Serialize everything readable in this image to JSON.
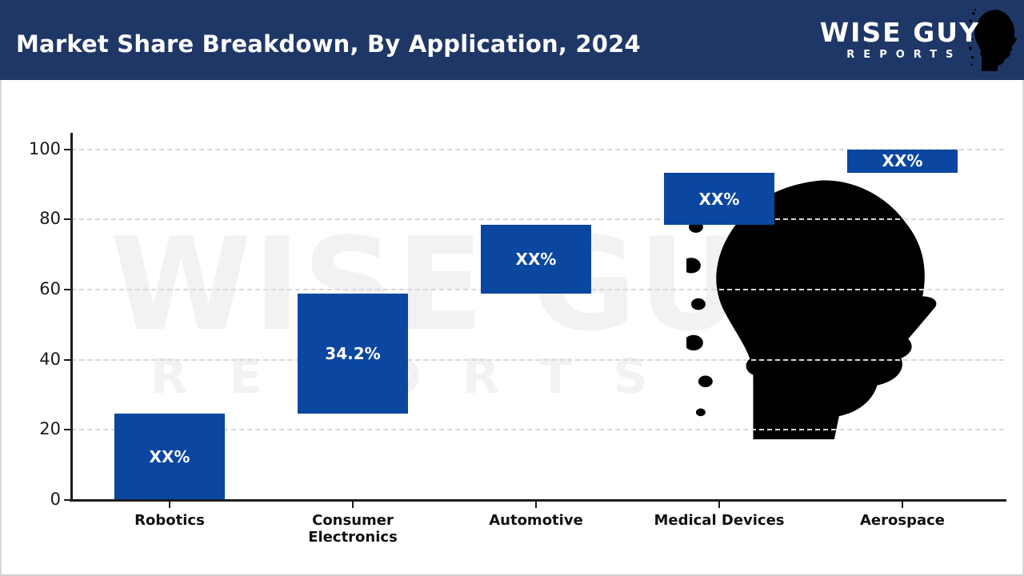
{
  "header": {
    "title": "Market Share Breakdown, By Application, 2024",
    "logo": {
      "line1": "WISE GUY",
      "line2": "REPORTS"
    }
  },
  "watermark": {
    "line1": "WISE GUY",
    "line2": "REPORTS"
  },
  "colors": {
    "header_bg": "#1f3766",
    "bar": "#0b46a0",
    "bar_label": "#ffffff",
    "grid": "#d9d9d9",
    "axis": "#1c1c1c",
    "watermark": "#f2f2f4"
  },
  "chart_data": {
    "type": "bar",
    "subtype": "waterfall",
    "title": "Market Share Breakdown, By Application, 2024",
    "xlabel": "",
    "ylabel": "",
    "ylim": [
      0,
      100
    ],
    "yticks": [
      0,
      20,
      40,
      60,
      80,
      100
    ],
    "grid": "horizontal-dashed",
    "legend": "none",
    "categories": [
      "Robotics",
      "Consumer Electronics",
      "Automotive",
      "Medical Devices",
      "Aerospace"
    ],
    "segments": [
      {
        "category": "Robotics",
        "start": 0,
        "end": 24.6,
        "value": 24.6,
        "label": "XX%"
      },
      {
        "category": "Consumer Electronics",
        "start": 24.6,
        "end": 58.8,
        "value": 34.2,
        "label": "34.2%"
      },
      {
        "category": "Automotive",
        "start": 58.8,
        "end": 78.4,
        "value": 19.6,
        "label": "XX%"
      },
      {
        "category": "Medical Devices",
        "start": 78.4,
        "end": 93.2,
        "value": 14.8,
        "label": "XX%"
      },
      {
        "category": "Aerospace",
        "start": 93.2,
        "end": 100,
        "value": 6.8,
        "label": "XX%"
      }
    ]
  }
}
